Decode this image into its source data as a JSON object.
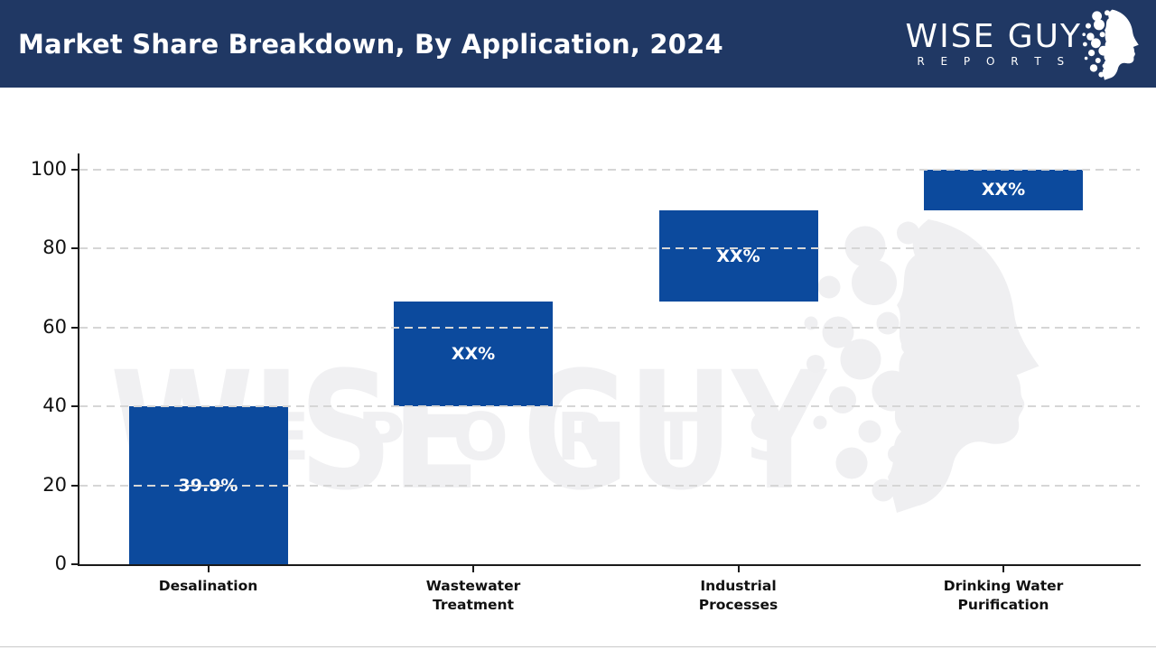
{
  "header": {
    "title": "Market Share Breakdown, By Application, 2024",
    "bg_color": "#203864",
    "logo": {
      "name": "WISE GUY",
      "tagline": "R E P O R T S",
      "icon": "dotted-face-profile-icon"
    }
  },
  "watermark": {
    "line1": "WISE GUY",
    "line2": "R E P O R T S",
    "icon": "dotted-face-profile-watermark"
  },
  "chart_data": {
    "type": "bar",
    "subtype": "waterfall",
    "title": "Market Share Breakdown, By Application, 2024",
    "categories": [
      "Desalination",
      "Wastewater\nTreatment",
      "Industrial\nProcesses",
      "Drinking Water\nPurification"
    ],
    "segments": [
      {
        "category": "Desalination",
        "start": 0,
        "end": 39.9,
        "label": "39.9%"
      },
      {
        "category": "Wastewater Treatment",
        "start": 40,
        "end": 66.5,
        "label": "XX%"
      },
      {
        "category": "Industrial Processes",
        "start": 66.5,
        "end": 89.5,
        "label": "XX%"
      },
      {
        "category": "Drinking Water Purification",
        "start": 89.5,
        "end": 100,
        "label": "XX%"
      }
    ],
    "ylim": [
      0,
      100
    ],
    "yticks": [
      0,
      20,
      40,
      60,
      80,
      100
    ],
    "grid": "horizontal-dashed",
    "legend": "none",
    "xlabel": "",
    "ylabel": "",
    "bar_color": "#0c4a9d",
    "bar_label_color": "#ffffff",
    "axis_color": "#1a1a1a",
    "gridline_color": "#d6d6d6"
  }
}
